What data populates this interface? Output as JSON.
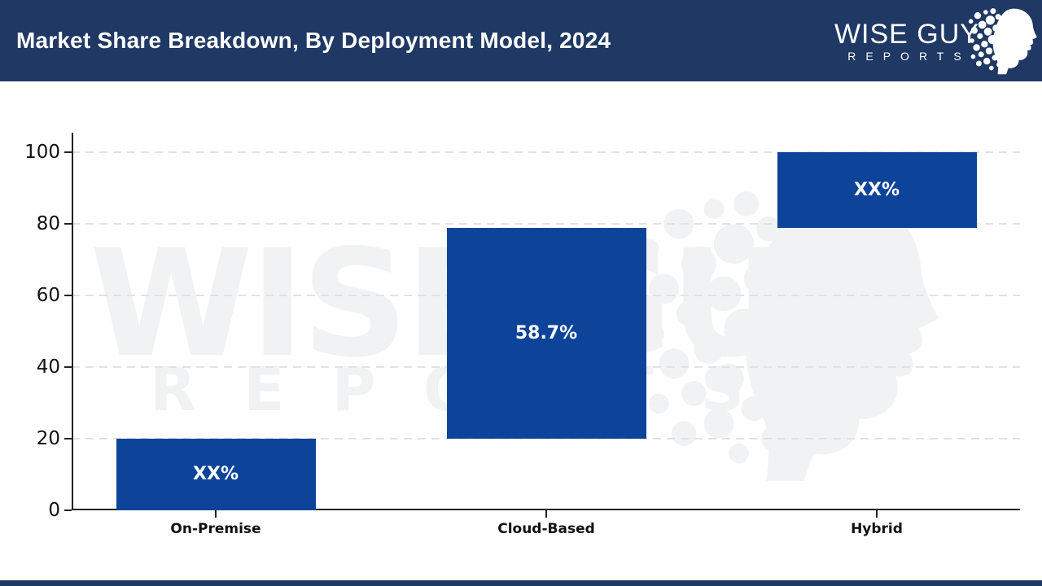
{
  "header": {
    "title": "Market Share Breakdown, By Deployment Model, 2024",
    "logo": {
      "line1": "WISE GUY",
      "line2": "REPORTS"
    }
  },
  "watermark": {
    "line1": "WISE GUY",
    "line2": "REPORTS"
  },
  "chart_data": {
    "type": "bar",
    "subtype": "floating-waterfall",
    "title": "Market Share Breakdown, By Deployment Model, 2024",
    "categories": [
      "On-Premise",
      "Cloud-Based",
      "Hybrid"
    ],
    "segments": [
      {
        "category": "On-Premise",
        "start": 0,
        "end": 20,
        "label": "XX%"
      },
      {
        "category": "Cloud-Based",
        "start": 20,
        "end": 78.7,
        "label": "58.7%"
      },
      {
        "category": "Hybrid",
        "start": 78.7,
        "end": 100,
        "label": "XX%"
      }
    ],
    "yticks": [
      0,
      20,
      40,
      60,
      80,
      100
    ],
    "ylim": [
      0,
      100
    ],
    "xlabel": "",
    "ylabel": "",
    "grid": "dashed-horizontal",
    "legend": "none"
  },
  "colors": {
    "header_bg": "#1f3864",
    "footer_bg": "#1f3864",
    "bar": "#0d4499",
    "bar_label": "#ffffff",
    "gridline": "#e2e2e2",
    "axis": "#222222",
    "watermark": "#f1f2f4"
  }
}
